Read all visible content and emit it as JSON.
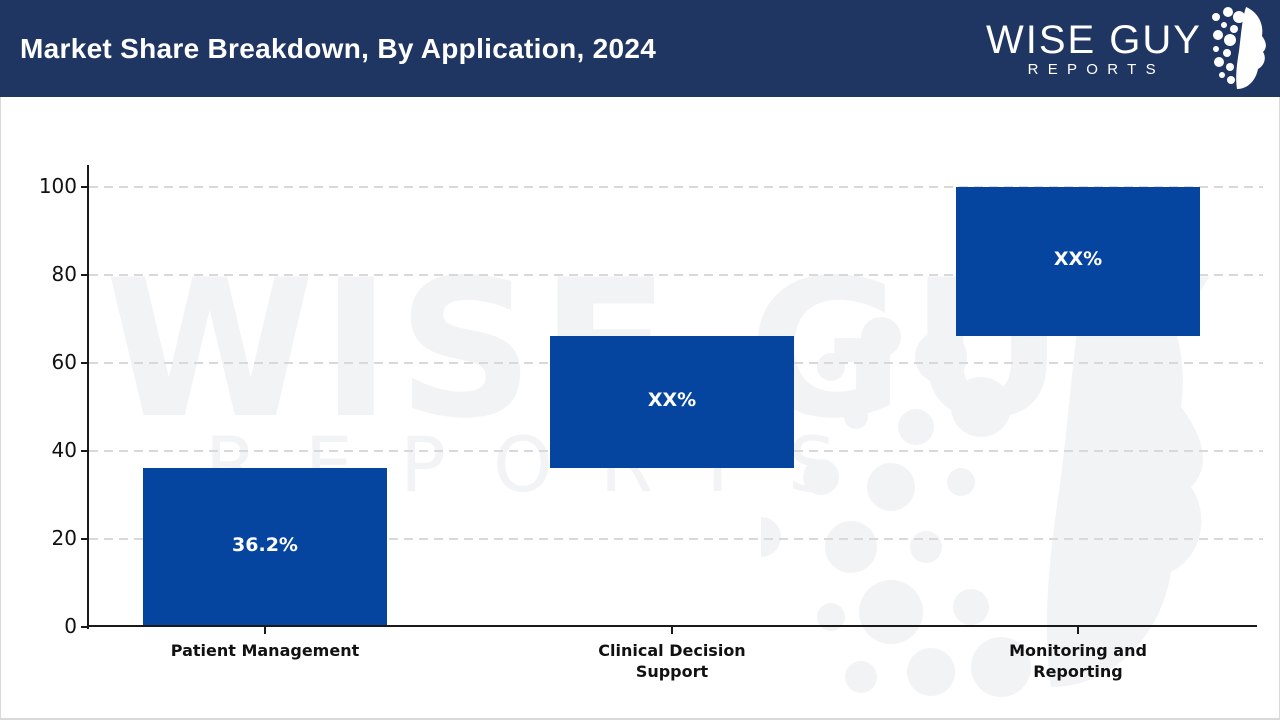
{
  "header": {
    "title": "Market Share Breakdown, By Application, 2024",
    "logo": {
      "word": "WISE GUY",
      "tagline": "REPORTS"
    }
  },
  "watermark": {
    "word": "WISE GUY",
    "tagline": "REPORTS"
  },
  "chart_data": {
    "type": "bar",
    "variant": "floating-waterfall",
    "title": "Market Share Breakdown, By Application, 2024",
    "categories": [
      "Patient Management",
      "Clinical Decision\nSupport",
      "Monitoring and\nReporting"
    ],
    "segments": [
      {
        "category": "Patient Management",
        "from": 0,
        "to": 36.2,
        "label": "36.2%"
      },
      {
        "category": "Clinical Decision Support",
        "from": 36.2,
        "to": 66.2,
        "label": "XX%"
      },
      {
        "category": "Monitoring and Reporting",
        "from": 66.2,
        "to": 100,
        "label": "XX%"
      }
    ],
    "ylim": [
      0,
      100
    ],
    "yticks": [
      0,
      20,
      40,
      60,
      80,
      100
    ],
    "grid": "horizontal-dashed",
    "legend": "none",
    "xlabel": "",
    "ylabel": ""
  },
  "colors": {
    "header_bg": "#1f3562",
    "bar": "#0545a0",
    "value_label": "#ffffff",
    "grid": "#d9d9d9",
    "axis": "#1a1a1a",
    "watermark": "#f2f3f5"
  }
}
